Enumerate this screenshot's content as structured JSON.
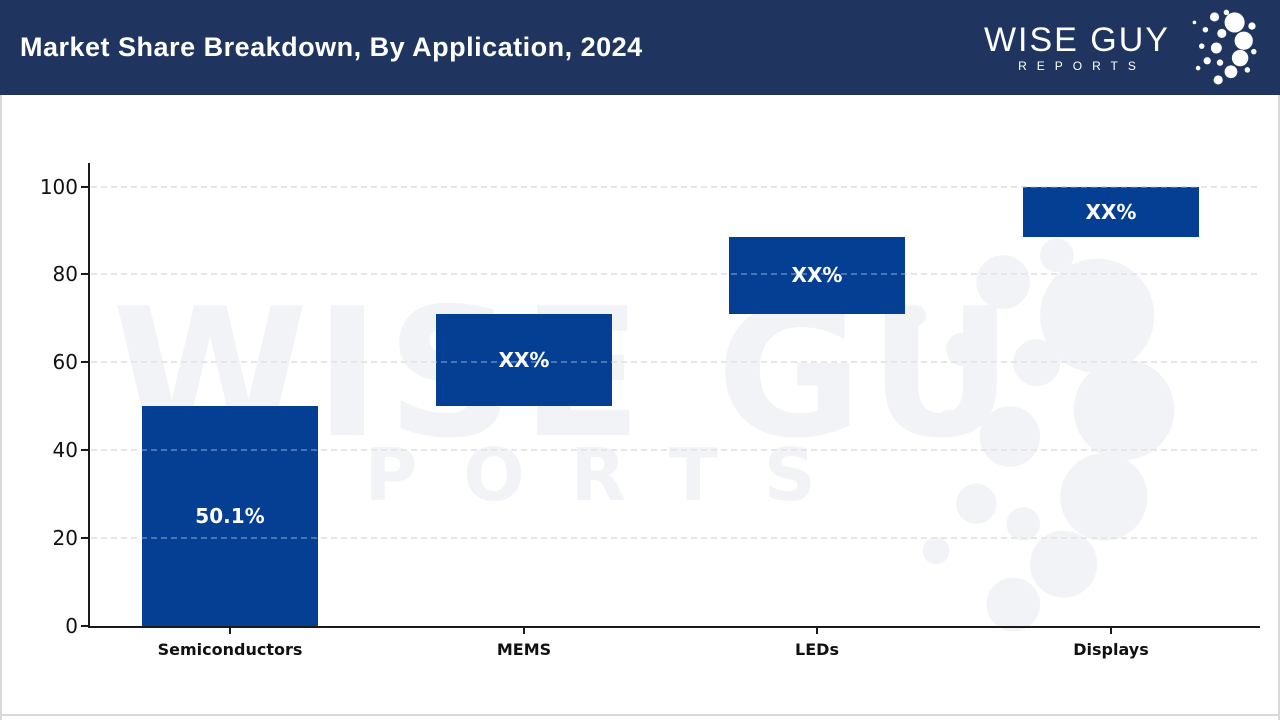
{
  "header": {
    "title": "Market Share Breakdown, By Application, 2024",
    "logo": {
      "line1": "WISE GUY",
      "line2": "REPORTS"
    }
  },
  "watermark": {
    "line1": "WISE GU",
    "line2": "REPORTS"
  },
  "colors": {
    "header_bg": "#1f3560",
    "bar_blue": "#043f94",
    "grid_gray": "#dcdcdc",
    "watermark_gray": "#f2f3f6"
  },
  "chart_data": {
    "type": "bar",
    "subtype": "waterfall",
    "title": "Market Share Breakdown, By Application, 2024",
    "categories": [
      "Semiconductors",
      "MEMS",
      "LEDs",
      "Displays"
    ],
    "segments": [
      {
        "category": "Semiconductors",
        "start": 0,
        "end": 50.1,
        "label": "50.1%"
      },
      {
        "category": "MEMS",
        "start": 50.1,
        "end": 71.1,
        "label": "XX%"
      },
      {
        "category": "LEDs",
        "start": 71.1,
        "end": 88.6,
        "label": "XX%"
      },
      {
        "category": "Displays",
        "start": 88.6,
        "end": 100,
        "label": "XX%"
      }
    ],
    "yticks": [
      0,
      20,
      40,
      60,
      80,
      100
    ],
    "ylim": [
      0,
      105
    ],
    "xlabel": "",
    "ylabel": "",
    "grid": "dashed-horizontal",
    "legend": "none",
    "bar_color": "#043f94",
    "bar_label_color": "#ffffff"
  }
}
